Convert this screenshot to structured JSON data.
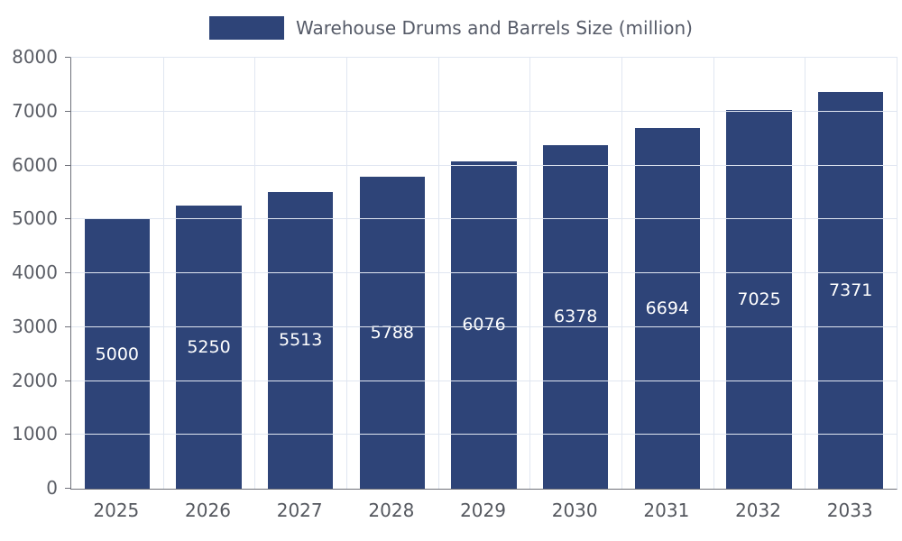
{
  "chart_data": {
    "type": "bar",
    "title": "Warehouse Drums and Barrels Size (million)",
    "categories": [
      "2025",
      "2026",
      "2027",
      "2028",
      "2029",
      "2030",
      "2031",
      "2032",
      "2033"
    ],
    "values": [
      5000,
      5250,
      5513,
      5788,
      6076,
      6378,
      6694,
      7025,
      7371
    ],
    "xlabel": "",
    "ylabel": "",
    "ylim": [
      0,
      8000
    ],
    "yticks": [
      0,
      1000,
      2000,
      3000,
      4000,
      5000,
      6000,
      7000,
      8000
    ],
    "grid": true,
    "legend_position": "top-center",
    "bar_color": "#2E4478",
    "value_label_color": "#ffffff",
    "gridline_color": "#E0E6F1",
    "axis_line_color": "#6E7079"
  }
}
